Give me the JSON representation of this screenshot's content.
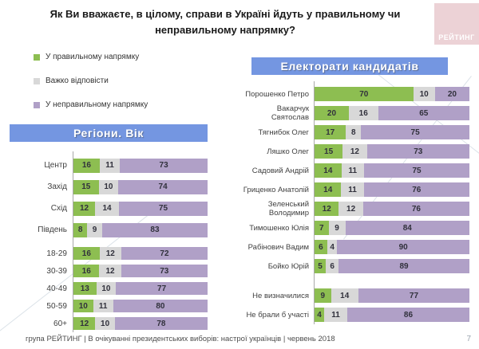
{
  "title": "Як Ви вважаєте, в цілому, справи в Україні йдуть у правильному чи неправильному напрямку?",
  "logo": {
    "text": "РЕЙТИНГ",
    "bg_color": "#ecd2d6"
  },
  "legend": {
    "items": [
      {
        "label": "У правильному напрямку",
        "color": "#8dbe51"
      },
      {
        "label": "Важко відповісти",
        "color": "#d8d8d8"
      },
      {
        "label": "У неправильному напрямку",
        "color": "#b0a0c7"
      }
    ]
  },
  "colors": {
    "accent_blue": "#7496e1",
    "green": "#8dbe51",
    "gray": "#d8d8d8",
    "purple": "#b0a0c7",
    "logo_pink": "#ecd2d6"
  },
  "footer": {
    "text": "група РЕЙТИНГ  | В очікуванні президентських виборів: настрої українців |  червень 2018",
    "page_number": "7"
  },
  "chart_data": [
    {
      "type": "bar",
      "orientation": "horizontal",
      "stacked": true,
      "title": "Регіони. Вік",
      "unit": "%",
      "xlim": [
        0,
        100
      ],
      "legend_position": "top-left",
      "grid": false,
      "series_names": [
        "У правильному напрямку",
        "Важко відповісти",
        "У неправильному напрямку"
      ],
      "series_colors": [
        "#8dbe51",
        "#d8d8d8",
        "#b0a0c7"
      ],
      "groups": [
        {
          "categories": [
            "Центр",
            "Захід",
            "Схід",
            "Південь"
          ],
          "values": [
            [
              16,
              11,
              73
            ],
            [
              15,
              10,
              74
            ],
            [
              12,
              14,
              75
            ],
            [
              8,
              9,
              83
            ]
          ]
        },
        {
          "categories": [
            "18-29",
            "30-39",
            "40-49",
            "50-59",
            "60+"
          ],
          "values": [
            [
              16,
              12,
              72
            ],
            [
              16,
              12,
              73
            ],
            [
              13,
              10,
              77
            ],
            [
              10,
              11,
              80
            ],
            [
              12,
              10,
              78
            ]
          ]
        }
      ]
    },
    {
      "type": "bar",
      "orientation": "horizontal",
      "stacked": true,
      "title": "Електорати кандидатів",
      "unit": "%",
      "xlim": [
        0,
        100
      ],
      "grid": false,
      "series_names": [
        "У правильному напрямку",
        "Важко відповісти",
        "У неправильному напрямку"
      ],
      "series_colors": [
        "#8dbe51",
        "#d8d8d8",
        "#b0a0c7"
      ],
      "groups": [
        {
          "categories": [
            "Порошенко Петро",
            "Вакарчук Святослав",
            "Тягнибок Олег",
            "Ляшко Олег",
            "Садовий Андрій",
            "Гриценко Анатолій",
            "Зеленський Володимир",
            "Тимошенко Юлія",
            "Рабінович Вадим",
            "Бойко Юрій"
          ],
          "values": [
            [
              70,
              10,
              20
            ],
            [
              20,
              16,
              65
            ],
            [
              17,
              8,
              75
            ],
            [
              15,
              12,
              73
            ],
            [
              14,
              11,
              75
            ],
            [
              14,
              11,
              76
            ],
            [
              12,
              12,
              76
            ],
            [
              7,
              9,
              84
            ],
            [
              6,
              4,
              90
            ],
            [
              5,
              6,
              89
            ]
          ]
        },
        {
          "categories": [
            "Не визначилися",
            "Не брали б участі"
          ],
          "values": [
            [
              9,
              14,
              77
            ],
            [
              4,
              11,
              86
            ]
          ]
        }
      ]
    }
  ]
}
